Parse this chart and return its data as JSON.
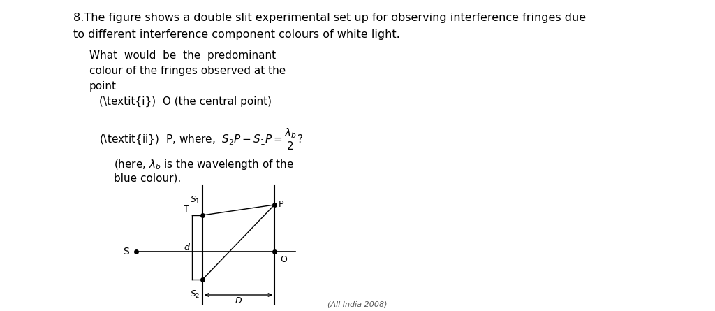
{
  "bg_color": "#ffffff",
  "text_color": "#000000",
  "title_line1": "8.The figure shows a double slit experimental set up for observing interference fringes due",
  "title_line2": "to different interference component colours of white light.",
  "footnote": "(All India 2008)",
  "fig_width": 10.24,
  "fig_height": 4.45,
  "dpi": 100
}
